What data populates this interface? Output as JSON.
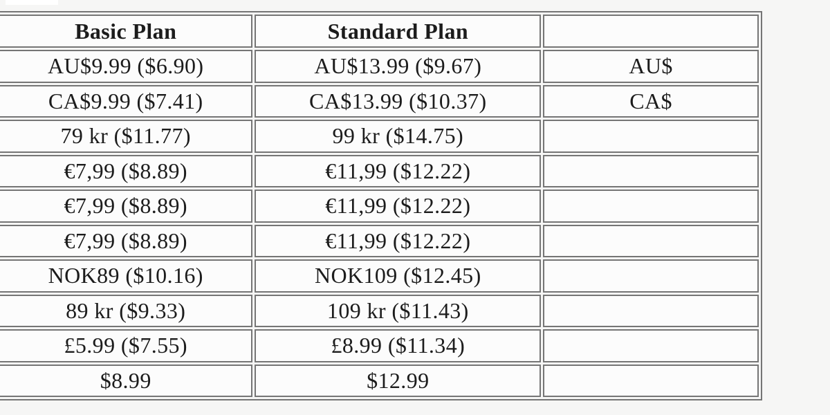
{
  "colors": {
    "table_border": "#757575",
    "cell_background": "#fcfcfc",
    "text": "#1c1c1c",
    "page_background": "#f6f6f5"
  },
  "table": {
    "headers": {
      "country": "",
      "basic": "Basic Plan",
      "standard": "Standard Plan",
      "premium": ""
    },
    "rows": [
      {
        "country": "",
        "basic": "AU$9.99 ($6.90)",
        "standard": "AU$13.99 ($9.67)",
        "premium_partial": "AU$"
      },
      {
        "country": "",
        "basic": "CA$9.99 ($7.41)",
        "standard": "CA$13.99 ($10.37)",
        "premium_partial": "CA$"
      },
      {
        "country": "",
        "basic": "79 kr ($11.77)",
        "standard": "99 kr ($14.75)",
        "premium_partial": ""
      },
      {
        "country": "",
        "basic": "€7,99 ($8.89)",
        "standard": "€11,99 ($12.22)",
        "premium_partial": ""
      },
      {
        "country": "",
        "basic": "€7,99 ($8.89)",
        "standard": "€11,99 ($12.22)",
        "premium_partial": ""
      },
      {
        "country": "",
        "basic": "€7,99 ($8.89)",
        "standard": "€11,99 ($12.22)",
        "premium_partial": ""
      },
      {
        "country": "",
        "basic": "NOK89 ($10.16)",
        "standard": "NOK109 ($12.45)",
        "premium_partial": ""
      },
      {
        "country": "",
        "basic": "89 kr ($9.33)",
        "standard": "109 kr ($11.43)",
        "premium_partial": ""
      },
      {
        "country": "",
        "basic": "£5.99 ($7.55)",
        "standard": "£8.99 ($11.34)",
        "premium_partial": ""
      },
      {
        "country": "",
        "basic": "$8.99",
        "standard": "$12.99",
        "premium_partial": ""
      }
    ]
  }
}
